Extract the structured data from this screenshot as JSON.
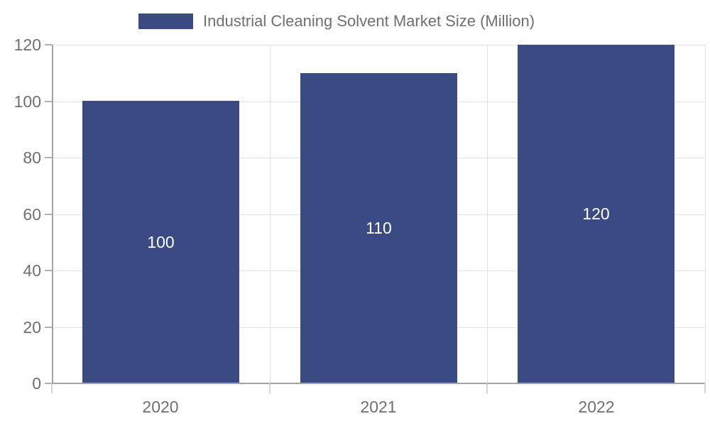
{
  "chart_data": {
    "type": "bar",
    "title": "Industrial Cleaning Solvent Market Size (Million)",
    "categories": [
      "2020",
      "2021",
      "2022"
    ],
    "values": [
      100,
      110,
      120
    ],
    "series": [
      {
        "name": "Industrial Cleaning Solvent Market Size (Million)",
        "values": [
          100,
          110,
          120
        ]
      }
    ],
    "xlabel": "",
    "ylabel": "",
    "ylim": [
      0,
      120
    ],
    "yticks": [
      0,
      20,
      40,
      60,
      80,
      100,
      120
    ],
    "grid": true,
    "legend_position": "top",
    "bar_labels_visible": true
  },
  "colors": {
    "bar": "#3a4a82",
    "grid": "#e0e0e0",
    "axis": "#a3a3a3",
    "tick": "#b0b0b0",
    "xtick": "#d4d4d4",
    "text": "#6f6f6f",
    "value_label": "#ffffff",
    "background": "#ffffff"
  }
}
